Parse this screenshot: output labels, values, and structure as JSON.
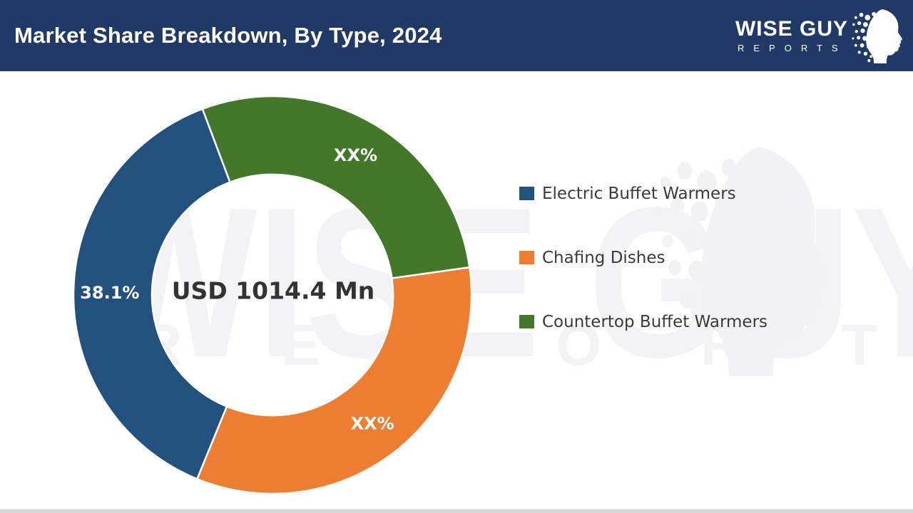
{
  "header": {
    "title": "Market Share Breakdown, By Type, 2024",
    "logo": {
      "line1": "WISE GUY",
      "line2": "REPORTS"
    }
  },
  "watermark": {
    "line1": "WISE GUY",
    "line2": "R E P O R T S"
  },
  "chart_data": {
    "type": "pie",
    "variant": "donut",
    "title": "Market Share Breakdown, By Type, 2024",
    "center_label": "USD 1014.4 Mn",
    "start_angle_deg": 110.6,
    "direction": "counterclockwise",
    "inner_radius_ratio": 0.606,
    "label_radius_ratio": 0.818,
    "outer_radius_px": 279,
    "legend_position": "right",
    "segments": [
      {
        "label": "Electric Buffet Warmers",
        "value_pct": 38.1,
        "display_label": "38.1%",
        "color": "#21517C"
      },
      {
        "label": "Chafing Dishes",
        "value_pct": 33.4,
        "display_label": "XX%",
        "color": "#ED7D31"
      },
      {
        "label": "Countertop Buffet Warmers",
        "value_pct": 28.5,
        "display_label": "XX%",
        "color": "#43782A"
      }
    ]
  },
  "colors": {
    "header_bg": "#213966",
    "bottom_strip": "#D6D6D6",
    "slice_divider": "#FFFFFF"
  }
}
